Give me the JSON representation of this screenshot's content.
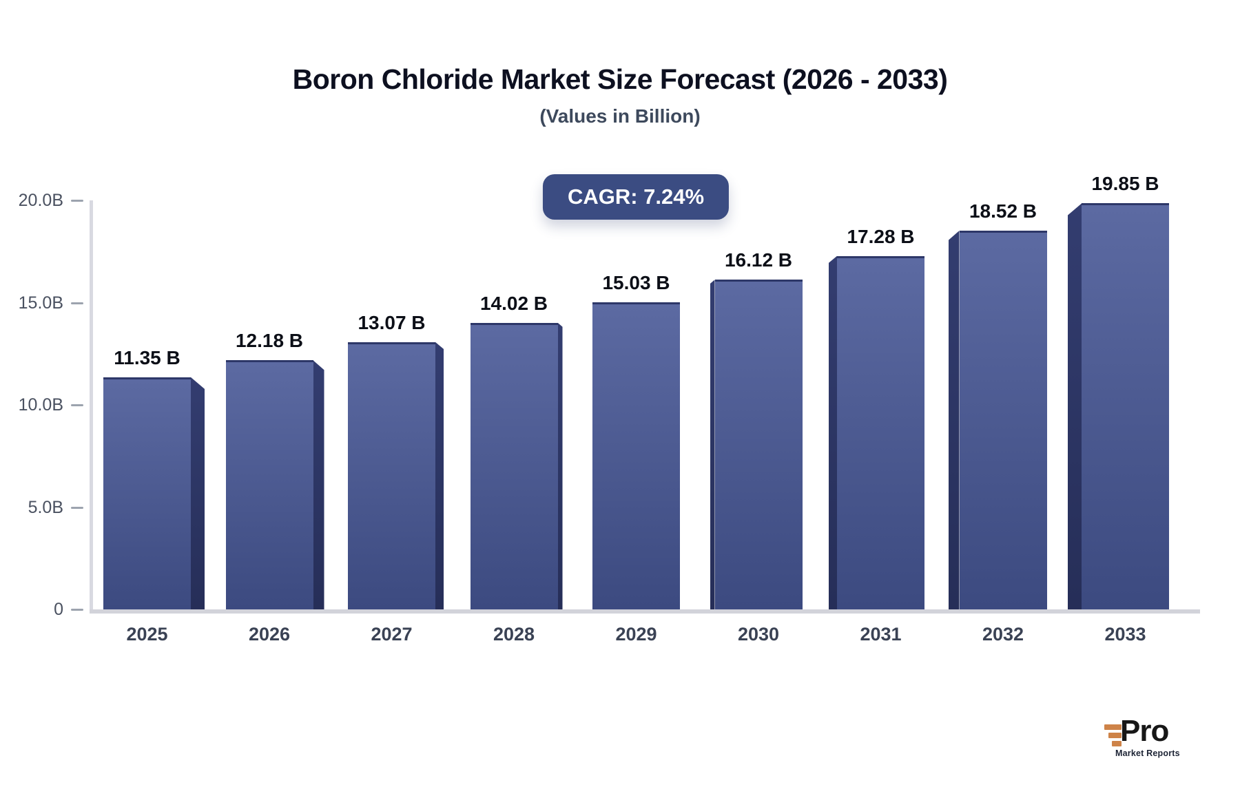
{
  "header": {
    "title": "Boron Chloride Market Size Forecast (2026 - 2033)",
    "subtitle": "(Values in Billion)",
    "cagr_label": "CAGR: 7.24%"
  },
  "chart_data": {
    "type": "bar",
    "title": "Boron Chloride Market Size Forecast (2026 - 2033)",
    "subtitle": "(Values in Billion)",
    "cagr_percent": 7.24,
    "categories": [
      "2025",
      "2026",
      "2027",
      "2028",
      "2029",
      "2030",
      "2031",
      "2032",
      "2033"
    ],
    "values": [
      11.35,
      12.18,
      13.07,
      14.02,
      15.03,
      16.12,
      17.28,
      18.52,
      19.85
    ],
    "bar_labels": [
      "11.35 B",
      "12.18 B",
      "13.07 B",
      "14.02 B",
      "15.03 B",
      "16.12 B",
      "17.28 B",
      "18.52 B",
      "19.85 B"
    ],
    "y_ticks": [
      {
        "value": 0,
        "label": "0"
      },
      {
        "value": 5,
        "label": "5.0B"
      },
      {
        "value": 10,
        "label": "10.0B"
      },
      {
        "value": 15,
        "label": "15.0B"
      },
      {
        "value": 20,
        "label": "20.0B"
      }
    ],
    "ylim": [
      0,
      20
    ],
    "grid": false,
    "legend": false,
    "bar_style": "3d-perspective",
    "colors": {
      "bar_top": "#5c6aa2",
      "bar_bottom": "#3c4a80",
      "bar_side_top": "#333d70",
      "bar_side_bottom": "#262e58",
      "bar_top_edge": "#2d3768",
      "axis_line": "#d8d9e1",
      "baseline": "#d2d3da",
      "tick_dash": "#9ca3ae",
      "y_tick_text": "#4a5160",
      "x_tick_text": "#3a4254",
      "value_label_text": "#0c0f17",
      "badge_bg": "#3b4c82",
      "badge_text": "#ffffff"
    }
  },
  "logo": {
    "brand": "Pro",
    "tagline": "Market Reports",
    "bar_color": "#ce8348"
  }
}
